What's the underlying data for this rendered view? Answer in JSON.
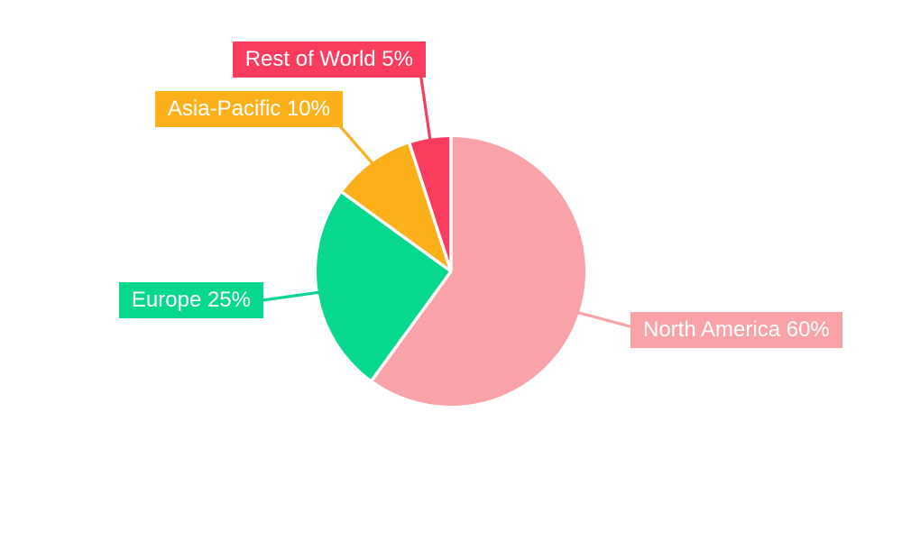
{
  "chart_data": {
    "type": "pie",
    "title": "",
    "start_angle": "top",
    "direction": "clockwise",
    "background": "#ffffff",
    "separator_color": "#ffffff",
    "label_text_color": "#ffffff",
    "legend_position": "callout-labels",
    "categories": [
      "North America",
      "Europe",
      "Asia-Pacific",
      "Rest of World"
    ],
    "values": [
      60,
      25,
      10,
      5
    ],
    "unit": "%",
    "slices": [
      {
        "label": "North America",
        "value": 60,
        "display": "North America 60%",
        "color": "#F9A3A8"
      },
      {
        "label": "Europe",
        "value": 25,
        "display": "Europe 25%",
        "color": "#07D88E"
      },
      {
        "label": "Asia-Pacific",
        "value": 10,
        "display": "Asia-Pacific 10%",
        "color": "#FCB11B"
      },
      {
        "label": "Rest of World",
        "value": 5,
        "display": "Rest of World 5%",
        "color": "#FA3C5F"
      }
    ]
  }
}
